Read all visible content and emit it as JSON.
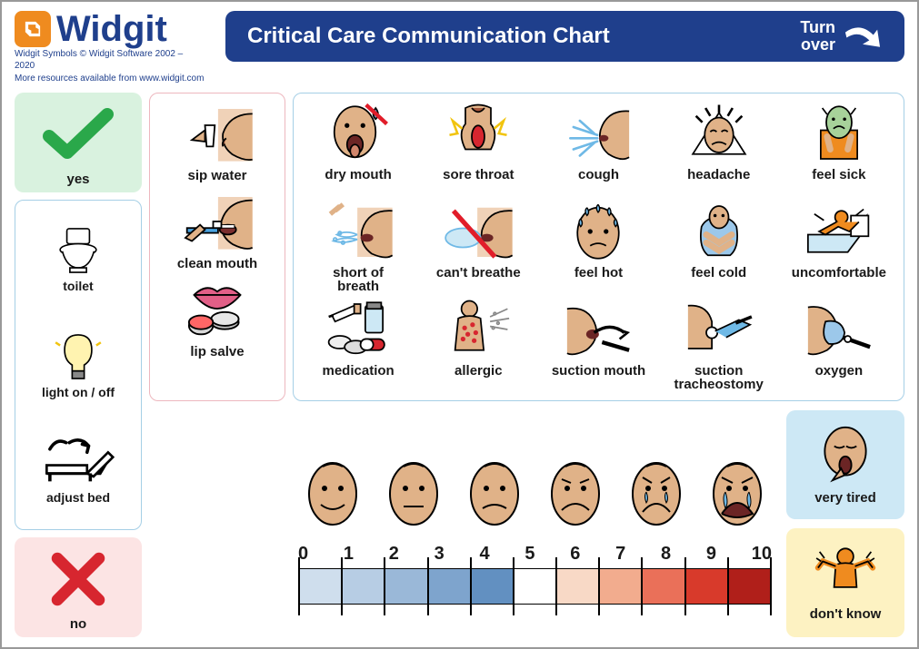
{
  "brand": {
    "name": "Widgit",
    "copyright": "Widgit Symbols © Widgit Software 2002 – 2020",
    "more": "More resources available from www.widgit.com"
  },
  "title": "Critical Care Communication Chart",
  "turn_over": "Turn\nover",
  "yes": "yes",
  "no": "no",
  "utilities": [
    "toilet",
    "light on / off",
    "adjust bed"
  ],
  "mouth_care": [
    "sip water",
    "clean mouth",
    "lip salve"
  ],
  "symptoms": [
    "dry mouth",
    "sore throat",
    "cough",
    "headache",
    "feel sick",
    "short of\nbreath",
    "can't breathe",
    "feel hot",
    "feel cold",
    "uncomfortable",
    "medication",
    "allergic",
    "suction mouth",
    "suction\ntracheostomy",
    "oxygen"
  ],
  "very_tired": "very tired",
  "dont_know": "don't know",
  "pain_scale": {
    "numbers": [
      "0",
      "1",
      "2",
      "3",
      "4",
      "5",
      "6",
      "7",
      "8",
      "9",
      "10"
    ],
    "face_levels": [
      0,
      2,
      4,
      6,
      8,
      10
    ],
    "colors": [
      "#cfdeed",
      "#b7cde4",
      "#9ab8d8",
      "#7ea4cd",
      "#6290c1",
      "#ffffff",
      "#f8d9c6",
      "#f2ac8e",
      "#ea7059",
      "#d83a2b",
      "#b01f1a"
    ]
  },
  "palette": {
    "header_blue": "#1f3f8c",
    "lt_blue": "#cde8f5",
    "lt_green": "#d9f2df",
    "lt_pink": "#fce4e4",
    "lt_yellow": "#fdf2c2",
    "skin": "#e0b288",
    "orange": "#ef8b1f",
    "red": "#d7262f",
    "green": "#2aa84a"
  }
}
